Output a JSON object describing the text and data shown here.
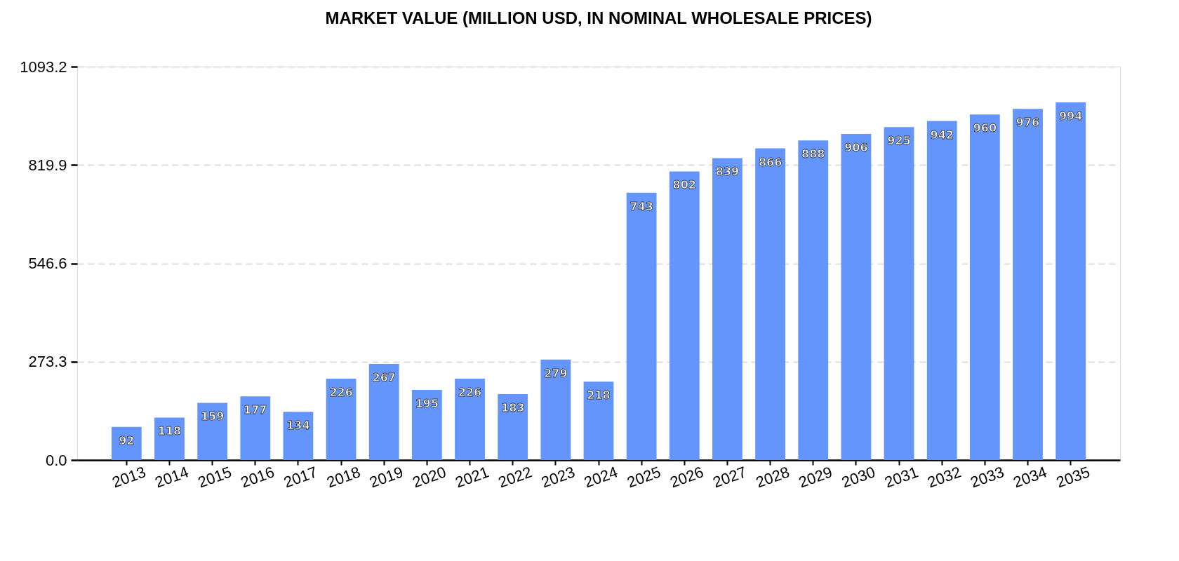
{
  "chart_data": {
    "type": "bar",
    "title": "MARKET VALUE (MILLION USD, IN NOMINAL WHOLESALE PRICES)",
    "categories": [
      "2013",
      "2014",
      "2015",
      "2016",
      "2017",
      "2018",
      "2019",
      "2020",
      "2021",
      "2022",
      "2023",
      "2024",
      "2025",
      "2026",
      "2027",
      "2028",
      "2029",
      "2030",
      "2031",
      "2032",
      "2033",
      "2034",
      "2035"
    ],
    "values": [
      92,
      118,
      159,
      177,
      134,
      226,
      267,
      195,
      226,
      183,
      279,
      218,
      743,
      802,
      839,
      866,
      888,
      906,
      925,
      942,
      960,
      976,
      994
    ],
    "color": "#6495fd",
    "ylim": [
      0,
      1093.2
    ],
    "yticks": [
      {
        "value": 0,
        "label": "0.0"
      },
      273.3,
      546.6,
      819.9,
      1093.2
    ],
    "grid": "y",
    "data_labels": true
  }
}
